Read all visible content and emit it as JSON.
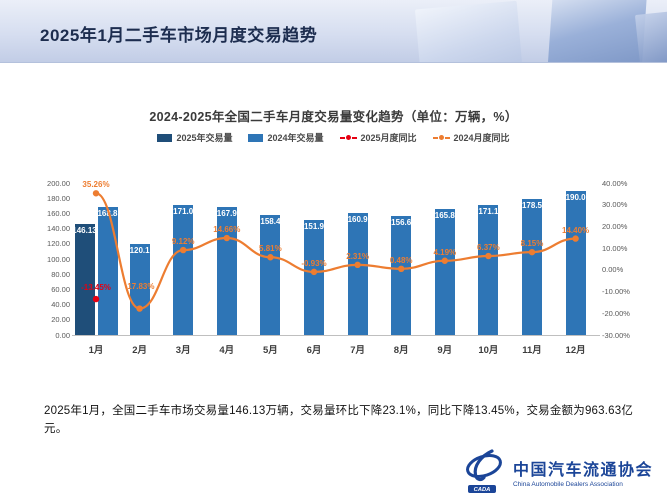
{
  "header": {
    "title": "2025年1月二手车市场月度交易趋势"
  },
  "chart_data": {
    "type": "bar+line combo",
    "title": "2024-2025年全国二手车月度交易量变化趋势（单位：万辆，%）",
    "categories": [
      "1月",
      "2月",
      "3月",
      "4月",
      "5月",
      "6月",
      "7月",
      "8月",
      "9月",
      "10月",
      "11月",
      "12月"
    ],
    "series": [
      {
        "name": "2025年交易量",
        "type": "bar",
        "axis": "left",
        "color": "#1F4E79",
        "values": [
          146.13,
          null,
          null,
          null,
          null,
          null,
          null,
          null,
          null,
          null,
          null,
          null
        ],
        "labels": [
          "146.13",
          "",
          "",
          "",
          "",
          "",
          "",
          "",
          "",
          "",
          "",
          ""
        ]
      },
      {
        "name": "2024年交易量",
        "type": "bar",
        "axis": "left",
        "color": "#2E75B6",
        "values": [
          168.8,
          120.1,
          171.0,
          167.9,
          158.4,
          151.9,
          160.9,
          156.6,
          165.8,
          171.1,
          178.5,
          190.0
        ],
        "labels": [
          "168.8",
          "120.1",
          "171.0",
          "167.9",
          "158.4",
          "151.9",
          "160.9",
          "156.6",
          "165.8",
          "171.1",
          "178.5",
          "190.0"
        ]
      },
      {
        "name": "2025月度同比",
        "type": "line",
        "axis": "right",
        "color": "#E60012",
        "values": [
          -13.45,
          null,
          null,
          null,
          null,
          null,
          null,
          null,
          null,
          null,
          null,
          null
        ],
        "labels": [
          "-13.45%",
          "",
          "",
          "",
          "",
          "",
          "",
          "",
          "",
          "",
          "",
          ""
        ]
      },
      {
        "name": "2024月度同比",
        "type": "line",
        "axis": "right",
        "color": "#ED7D31",
        "values": [
          35.26,
          -17.83,
          9.12,
          14.66,
          5.81,
          -0.93,
          2.31,
          0.48,
          4.19,
          6.37,
          8.15,
          14.4
        ],
        "labels": [
          "35.26%",
          "-17.83%",
          "9.12%",
          "14.66%",
          "5.81%",
          "-0.93%",
          "2.31%",
          "0.48%",
          "4.19%",
          "6.37%",
          "8.15%",
          "14.40%"
        ]
      }
    ],
    "left_axis": {
      "min": 0,
      "max": 200,
      "step": 20,
      "labels": [
        "0.00",
        "20.00",
        "40.00",
        "60.00",
        "80.00",
        "100.00",
        "120.00",
        "140.00",
        "160.00",
        "180.00",
        "200.00"
      ]
    },
    "right_axis": {
      "min": -30,
      "max": 40,
      "step": 10,
      "labels": [
        "-30.00%",
        "-20.00%",
        "-10.00%",
        "0.00%",
        "10.00%",
        "20.00%",
        "30.00%",
        "40.00%"
      ]
    },
    "legend_position": "top",
    "grid": "off"
  },
  "note": {
    "text": "2025年1月，全国二手车市场交易量146.13万辆，交易量环比下降23.1%，同比下降13.45%，交易金额为963.63亿元。"
  },
  "footer": {
    "org_cn": "中国汽车流通协会",
    "org_en": "China Automobile Dealers Association",
    "logo_text": "CADA",
    "brand_color": "#1B4598"
  }
}
